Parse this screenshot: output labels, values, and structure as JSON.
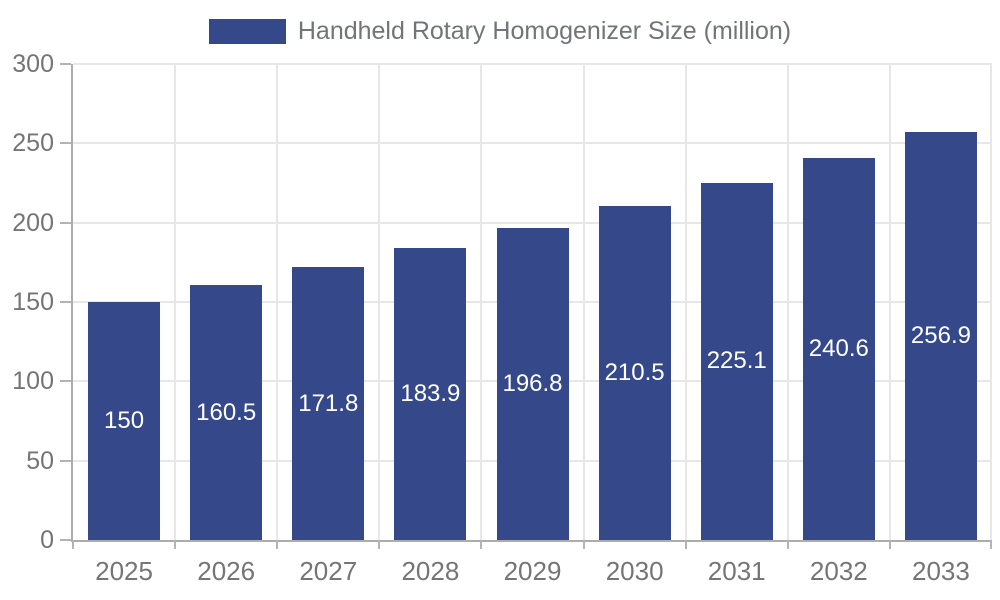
{
  "page": {
    "background": "#ffffff"
  },
  "legend": {
    "series_label": "Handheld Rotary Homogenizer Size (million)",
    "swatch_color": "#35498a"
  },
  "chart_data": {
    "type": "bar",
    "title": "Handheld Rotary Homogenizer Size (million)",
    "categories": [
      "2025",
      "2026",
      "2027",
      "2028",
      "2029",
      "2030",
      "2031",
      "2032",
      "2033"
    ],
    "values": [
      150,
      160.5,
      171.8,
      183.9,
      196.8,
      210.5,
      225.1,
      240.6,
      256.9
    ],
    "value_labels": [
      "150",
      "160.5",
      "171.8",
      "183.9",
      "196.8",
      "210.5",
      "225.1",
      "240.6",
      "256.9"
    ],
    "xlabel": "",
    "ylabel": "",
    "ylim": [
      0,
      300
    ],
    "yticks": [
      0,
      50,
      100,
      150,
      200,
      250,
      300
    ],
    "grid": true,
    "legend_position": "top-center",
    "colors": {
      "bar": "#35498a",
      "bar_value_label": "#ffffff",
      "gridline": "#e7e7e7",
      "axis_line": "#acacac",
      "tick": "#b3b3b3",
      "axis_label": "#757575",
      "legend_text": "#717479"
    }
  }
}
